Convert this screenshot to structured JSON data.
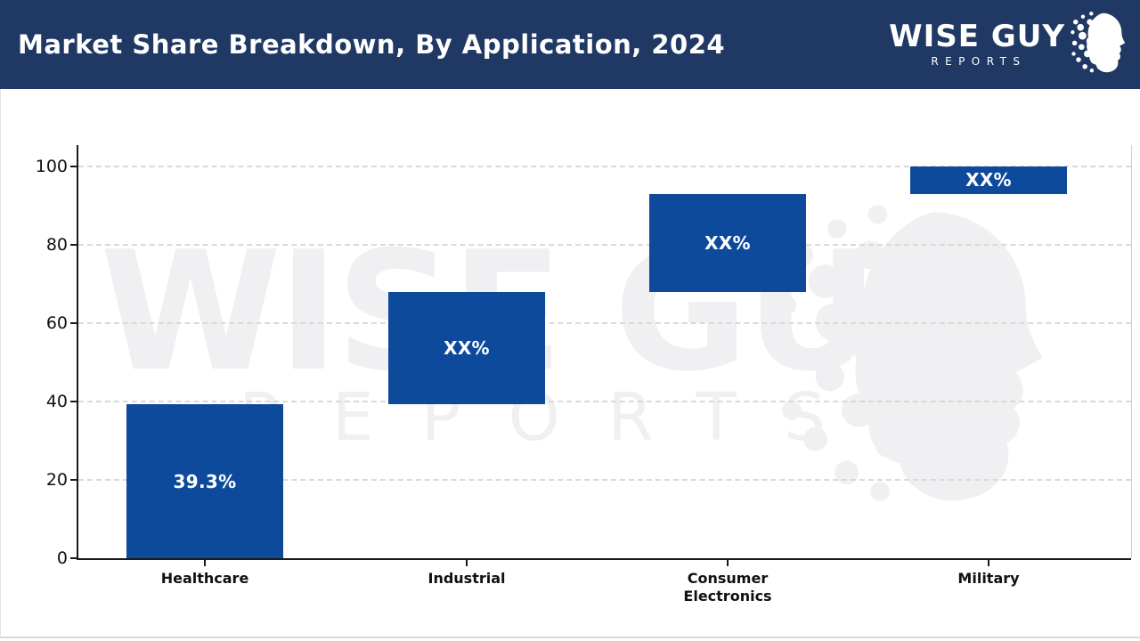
{
  "header": {
    "title": "Market Share Breakdown, By Application, 2024",
    "logo": {
      "name": "WISE GUY",
      "subname": "REPORTS"
    }
  },
  "watermark": {
    "line1": "WISE GUY",
    "line2": "REPORTS"
  },
  "colors": {
    "header_bg": "#1F3864",
    "bar": "#0D4A9C",
    "bar_label": "#FFFFFF",
    "grid": "#D9D9D9",
    "axis": "#1A1A1A",
    "watermark": "#F0F0F2"
  },
  "chart_data": {
    "type": "bar",
    "subtype": "waterfall",
    "title": "Market Share Breakdown, By Application, 2024",
    "categories": [
      "Healthcare",
      "Industrial",
      "Consumer Electronics",
      "Military"
    ],
    "segments": [
      {
        "category": "Healthcare",
        "base": 0,
        "top": 39.3,
        "label": "39.3%"
      },
      {
        "category": "Industrial",
        "base": 39.3,
        "top": 68,
        "label": "XX%"
      },
      {
        "category": "Consumer Electronics",
        "base": 68,
        "top": 93,
        "label": "XX%"
      },
      {
        "category": "Military",
        "base": 93,
        "top": 100,
        "label": "XX%"
      }
    ],
    "xlabel": "",
    "ylabel": "",
    "ylim": [
      0,
      100
    ],
    "yticks": [
      0,
      20,
      40,
      60,
      80,
      100
    ],
    "grid": "horizontal-dashed",
    "legend": "none"
  }
}
